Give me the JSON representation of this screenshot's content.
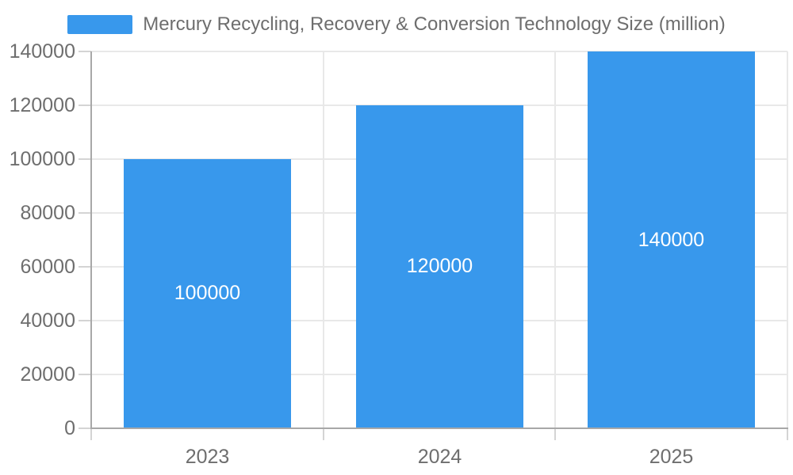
{
  "legend": {
    "label": "Mercury Recycling, Recovery & Conversion Technology Size (million)"
  },
  "chart_data": {
    "type": "bar",
    "title": "",
    "series_name": "Mercury Recycling, Recovery & Conversion Technology Size (million)",
    "categories": [
      "2023",
      "2024",
      "2025"
    ],
    "values": [
      100000,
      120000,
      140000
    ],
    "value_labels": [
      "100000",
      "120000",
      "140000"
    ],
    "xlabel": "",
    "ylabel": "",
    "ylim": [
      0,
      140000
    ],
    "ytick_step": 20000,
    "ytick_labels": [
      "0",
      "20000",
      "40000",
      "60000",
      "80000",
      "100000",
      "120000",
      "140000"
    ],
    "grid": true,
    "legend_position": "top",
    "bar_color": "#3898EC",
    "value_label_color": "#ffffff",
    "axis_text_color": "#6e6e6e"
  }
}
